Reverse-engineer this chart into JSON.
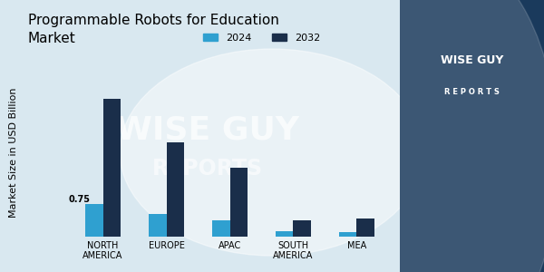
{
  "title": "Programmable Robots for Education\nMarket",
  "ylabel": "Market Size in USD Billion",
  "categories": [
    "NORTH\nAMERICA",
    "EUROPE",
    "APAC",
    "SOUTH\nAMERICA",
    "MEA"
  ],
  "values_2024": [
    0.75,
    0.52,
    0.38,
    0.13,
    0.1
  ],
  "values_2032": [
    3.2,
    2.2,
    1.6,
    0.38,
    0.42
  ],
  "color_2024": "#2fa0d0",
  "color_2032": "#1a2e4a",
  "bg_color": "#d9e8f0",
  "right_panel_color": "#1a3a5c",
  "annotation_text": "0.75",
  "legend_2024": "2024",
  "legend_2032": "2032",
  "title_fontsize": 11,
  "label_fontsize": 7,
  "ylabel_fontsize": 8,
  "wiseguy_top": "WISE GUY",
  "wiseguy_bottom": "R E P O R T S",
  "watermark_line1": "WISE GUY",
  "watermark_line2": "REPORTS"
}
